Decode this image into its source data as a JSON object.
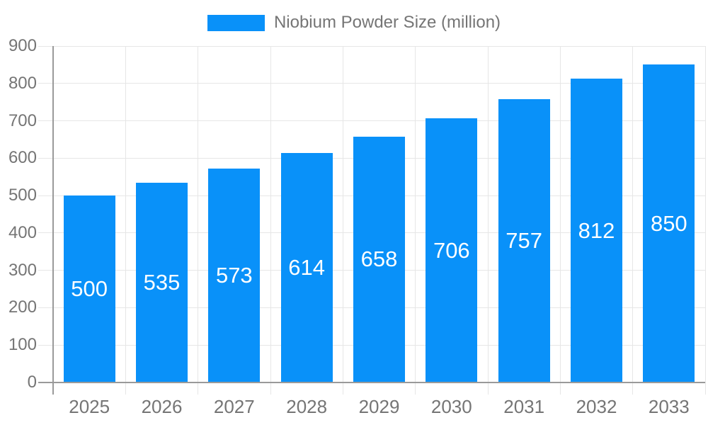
{
  "legend": {
    "label": "Niobium Powder Size (million)"
  },
  "chart_data": {
    "type": "bar",
    "title": "Niobium Powder Size (million)",
    "categories": [
      "2025",
      "2026",
      "2027",
      "2028",
      "2029",
      "2030",
      "2031",
      "2032",
      "2033"
    ],
    "values": [
      500,
      535,
      573,
      614,
      658,
      706,
      757,
      812,
      850
    ],
    "xlabel": "",
    "ylabel": "",
    "ylim": [
      0,
      900
    ],
    "yticks": [
      0,
      100,
      200,
      300,
      400,
      500,
      600,
      700,
      800,
      900
    ],
    "grid": true,
    "legend_position": "top-center",
    "value_labels": "inside-middle",
    "colors": {
      "bar": "#0991f9",
      "value_label": "#ffffff",
      "grid": "#e6e6e6",
      "axis": "#9a9a9a",
      "tick_label": "#757575",
      "legend_text": "#757575",
      "background": "#ffffff"
    }
  }
}
